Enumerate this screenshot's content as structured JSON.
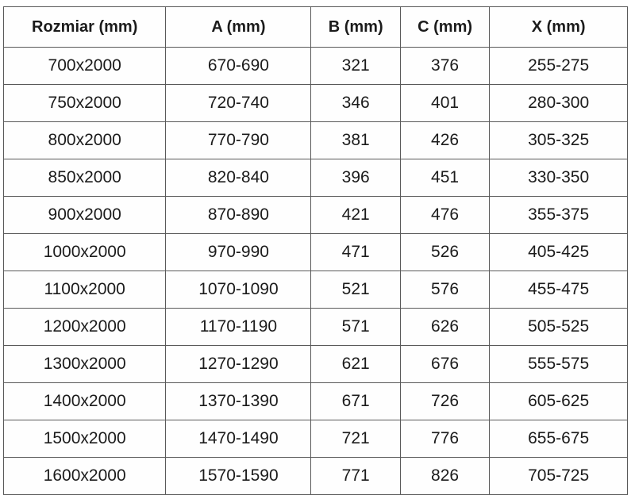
{
  "colors": {
    "border": "#595959",
    "text": "#1b1b1b",
    "background": "#ffffff"
  },
  "table": {
    "headers": [
      "Rozmiar (mm)",
      "A (mm)",
      "B (mm)",
      "C (mm)",
      "X (mm)"
    ],
    "rows": [
      [
        "700x2000",
        "670-690",
        "321",
        "376",
        "255-275"
      ],
      [
        "750x2000",
        "720-740",
        "346",
        "401",
        "280-300"
      ],
      [
        "800x2000",
        "770-790",
        "381",
        "426",
        "305-325"
      ],
      [
        "850x2000",
        "820-840",
        "396",
        "451",
        "330-350"
      ],
      [
        "900x2000",
        "870-890",
        "421",
        "476",
        "355-375"
      ],
      [
        "1000x2000",
        "970-990",
        "471",
        "526",
        "405-425"
      ],
      [
        "1100x2000",
        "1070-1090",
        "521",
        "576",
        "455-475"
      ],
      [
        "1200x2000",
        "1170-1190",
        "571",
        "626",
        "505-525"
      ],
      [
        "1300x2000",
        "1270-1290",
        "621",
        "676",
        "555-575"
      ],
      [
        "1400x2000",
        "1370-1390",
        "671",
        "726",
        "605-625"
      ],
      [
        "1500x2000",
        "1470-1490",
        "721",
        "776",
        "655-675"
      ],
      [
        "1600x2000",
        "1570-1590",
        "771",
        "826",
        "705-725"
      ]
    ]
  }
}
